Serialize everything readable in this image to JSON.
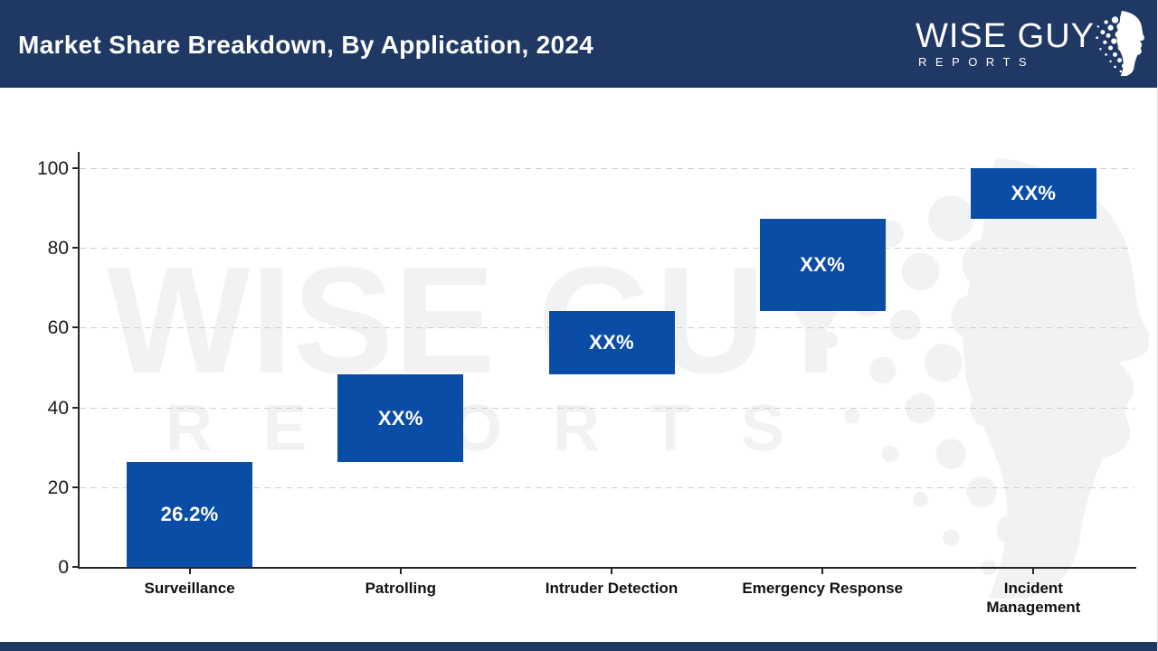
{
  "header": {
    "title": "Market Share Breakdown, By Application, 2024",
    "logo": {
      "line1": "WISE GUY",
      "line2": "REPORTS"
    }
  },
  "watermark": {
    "line1": "WISE GUY",
    "line2": "REPORTS"
  },
  "chart_data": {
    "type": "bar",
    "subtype": "waterfall",
    "title": "Market Share Breakdown, By Application, 2024",
    "categories": [
      "Surveillance",
      "Patrolling",
      "Intruder Detection",
      "Emergency Response",
      "Incident\nManagement"
    ],
    "segments": [
      {
        "category": "Surveillance",
        "start": 0,
        "end": 26.2,
        "label": "26.2%"
      },
      {
        "category": "Patrolling",
        "start": 26.2,
        "end": 48.3,
        "label": "XX%"
      },
      {
        "category": "Intruder Detection",
        "start": 48.3,
        "end": 64.2,
        "label": "XX%"
      },
      {
        "category": "Emergency Response",
        "start": 64.2,
        "end": 87.3,
        "label": "XX%"
      },
      {
        "category": "Incident\nManagement",
        "start": 87.3,
        "end": 100,
        "label": "XX%"
      }
    ],
    "yticks": [
      0,
      20,
      40,
      60,
      80,
      100
    ],
    "ylim": [
      0,
      100
    ],
    "xlabel": "",
    "ylabel": "",
    "grid": "dashed-horizontal",
    "legend": "none",
    "bar_color": "#0a4da6",
    "bar_label_color": "#ffffff",
    "colors": {
      "header_bg": "#1f3864",
      "footer_bg": "#1f3864",
      "axis": "#262626",
      "grid": "#cdcdcd",
      "watermark": "#f1f2f4"
    }
  }
}
